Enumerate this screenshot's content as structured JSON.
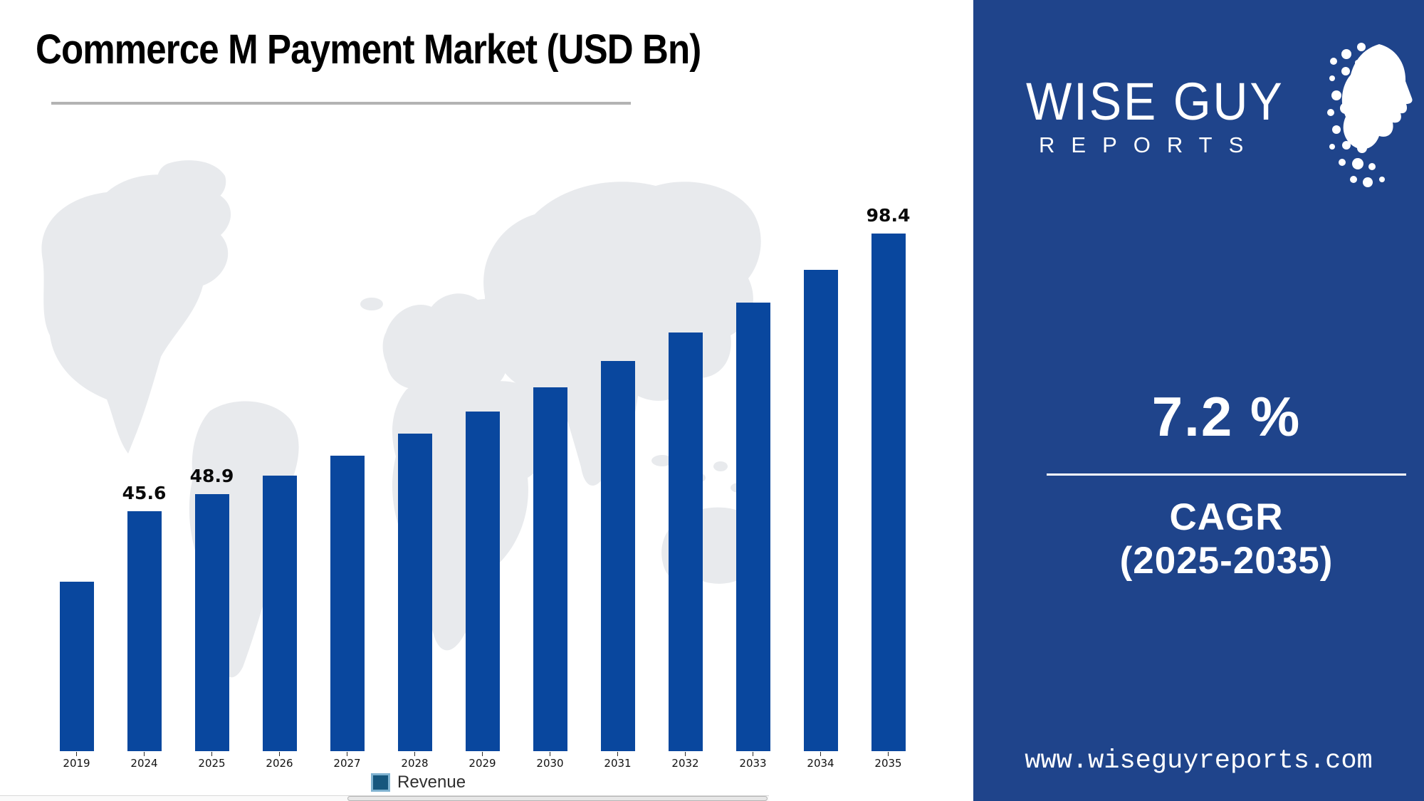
{
  "header": {
    "title": "Commerce M Payment Market (USD Bn)"
  },
  "chart_data": {
    "type": "bar",
    "title": "Commerce M Payment Market (USD Bn)",
    "categories": [
      "2019",
      "2024",
      "2025",
      "2026",
      "2027",
      "2028",
      "2029",
      "2030",
      "2031",
      "2032",
      "2033",
      "2034",
      "2035"
    ],
    "values": [
      32.2,
      45.6,
      48.9,
      52.4,
      56.2,
      60.3,
      64.6,
      69.2,
      74.2,
      79.5,
      85.2,
      91.5,
      98.4
    ],
    "bar_labels": [
      "",
      "45.6",
      "48.9",
      "",
      "",
      "",
      "",
      "",
      "",
      "",
      "",
      "",
      "98.4"
    ],
    "xlabel": "",
    "ylabel": "",
    "ylim": [
      0,
      110
    ],
    "grid": false,
    "bar_color": "#09479e",
    "legend_position": "bottom-center",
    "legend_entries": [
      "Revenue"
    ]
  },
  "legend": {
    "label": "Revenue",
    "swatch_fill": "#16567d",
    "swatch_border": "#7fb2d0"
  },
  "sidebar": {
    "bg_color": "#1f448b",
    "logo_line1": "WISE GUY",
    "logo_line2": "REPORTS",
    "cagr_value": "7.2 %",
    "cagr_label": "CAGR",
    "cagr_period": "(2025-2035)",
    "website": "www.wiseguyreports.com"
  }
}
